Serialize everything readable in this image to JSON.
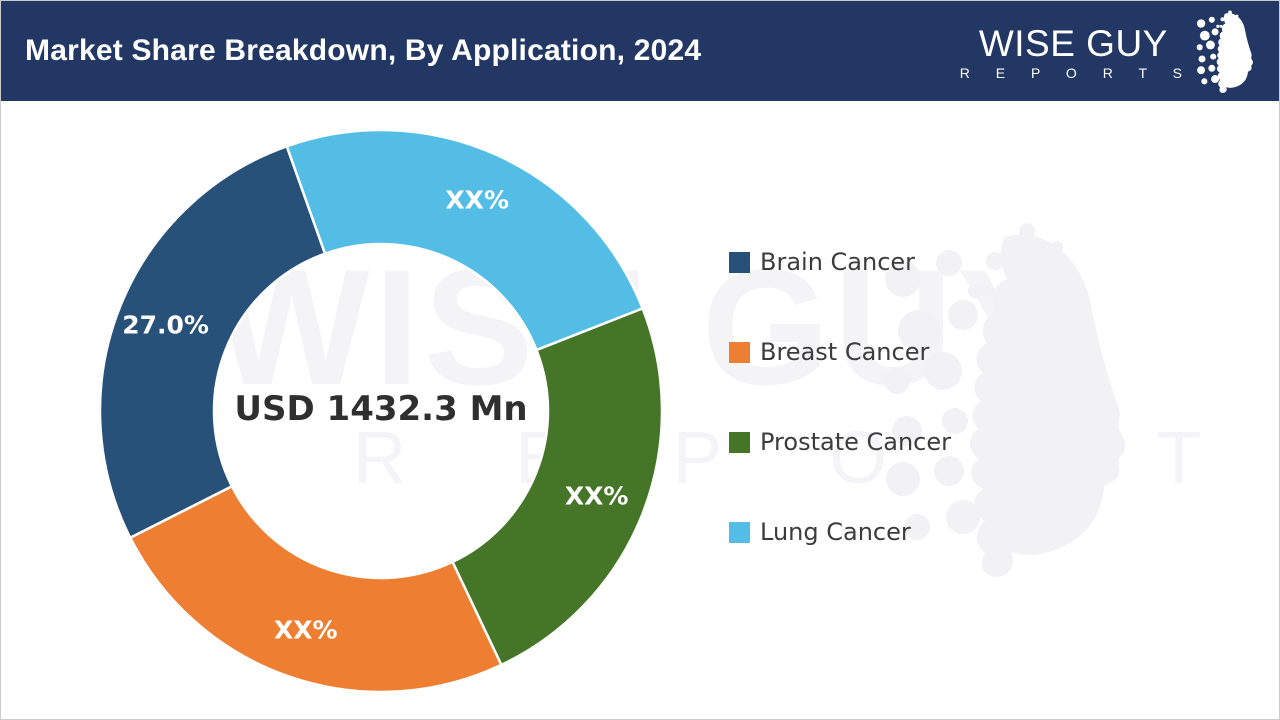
{
  "header": {
    "title": "Market Share Breakdown, By Application, 2024",
    "logo": {
      "line1": "WISE GUY",
      "line2": "R E P O R T S"
    }
  },
  "watermark": {
    "line1": "WISE GUY",
    "line2": "R E P O R T S"
  },
  "chart_data": {
    "type": "donut",
    "title": "Market Share Breakdown, By Application, 2024",
    "center_label": "USD 1432.3 Mn",
    "start_angle_deg": -19.6,
    "units": "percent",
    "segments": [
      {
        "label": "Lung Cancer",
        "value": 24.5,
        "display_label": "XX%",
        "color": "#53bde6"
      },
      {
        "label": "Prostate Cancer",
        "value": 23.9,
        "display_label": "XX%",
        "color": "#457527"
      },
      {
        "label": "Breast Cancer",
        "value": 24.6,
        "display_label": "XX%",
        "color": "#ee7e32"
      },
      {
        "label": "Brain Cancer",
        "value": 27.0,
        "display_label": "27.0%",
        "color": "#275179"
      }
    ],
    "legend": {
      "position": "right",
      "items": [
        {
          "label": "Brain Cancer",
          "color": "#275179"
        },
        {
          "label": "Breast Cancer",
          "color": "#ee7e32"
        },
        {
          "label": "Prostate Cancer",
          "color": "#457527"
        },
        {
          "label": "Lung Cancer",
          "color": "#53bde6"
        }
      ]
    }
  }
}
